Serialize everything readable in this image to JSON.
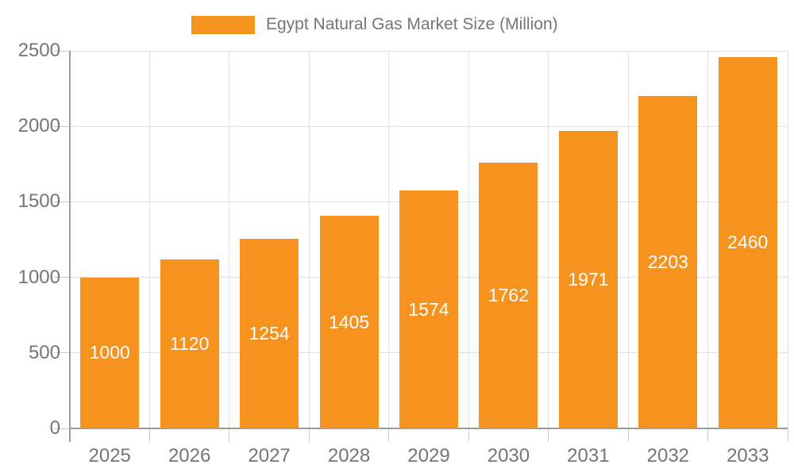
{
  "legend": {
    "label": "Egypt Natural Gas Market Size (Million)"
  },
  "colors": {
    "bar": "#F6921E",
    "bar_label": "#FFFFFF",
    "axis_line": "#9B9B9B",
    "gridline": "#E0E0E0",
    "tick": "#C9C9C9",
    "axis_text": "#757575",
    "legend_text": "#757575",
    "background": "#FFFFFF"
  },
  "chart_data": {
    "type": "bar",
    "title": "Egypt Natural Gas Market Size (Million)",
    "categories": [
      "2025",
      "2026",
      "2027",
      "2028",
      "2029",
      "2030",
      "2031",
      "2032",
      "2033"
    ],
    "values": [
      1000,
      1120,
      1254,
      1405,
      1574,
      1762,
      1971,
      2203,
      2460
    ],
    "series": [
      {
        "name": "Egypt Natural Gas Market Size (Million)",
        "values": [
          1000,
          1120,
          1254,
          1405,
          1574,
          1762,
          1971,
          2203,
          2460
        ]
      }
    ],
    "xlabel": "",
    "ylabel": "",
    "ylim": [
      0,
      2500
    ],
    "y_ticks": [
      0,
      500,
      1000,
      1500,
      2000,
      2500
    ],
    "grid": true,
    "legend_position": "top",
    "data_labels": "inside-center"
  }
}
